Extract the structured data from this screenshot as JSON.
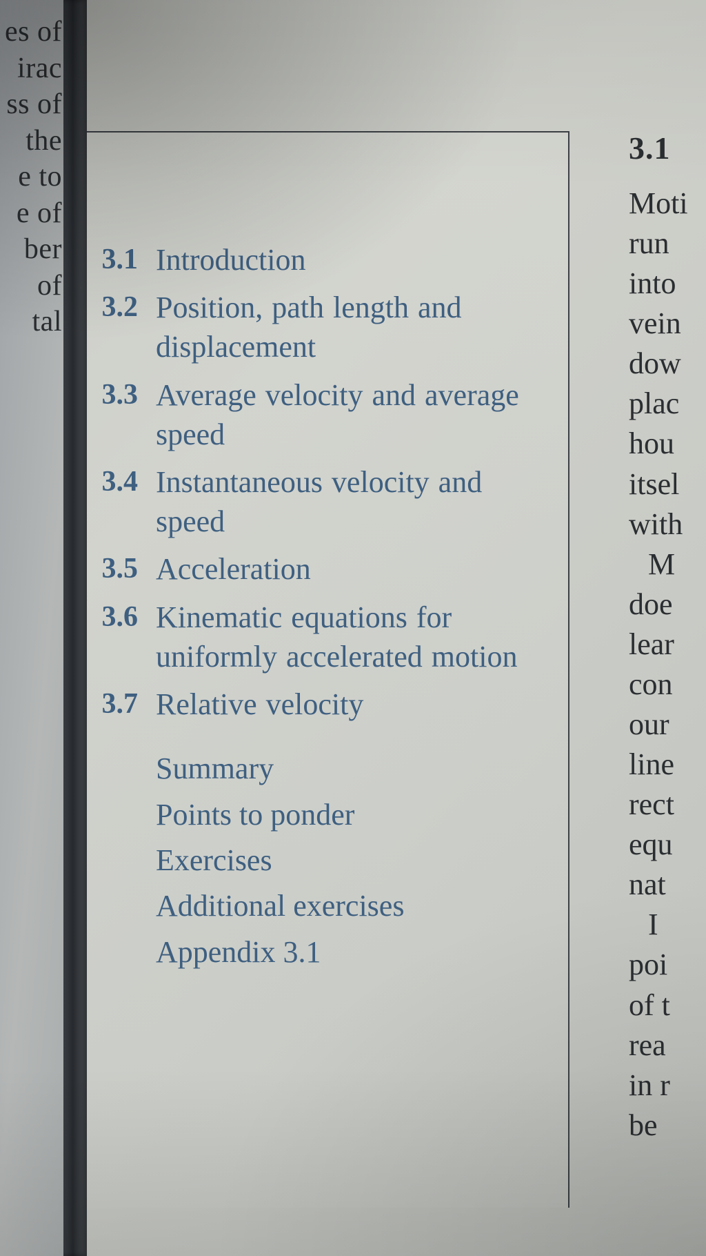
{
  "colors": {
    "toc_text": "#3e5f80",
    "body_text": "#2b2e31",
    "box_border": "#3c4044",
    "page_bg_from": "#c4c6c1",
    "page_bg_to": "#bfc2bd",
    "gutter_dark": "#26292d"
  },
  "typography": {
    "toc_num_fontsize_pt": 32,
    "toc_title_fontsize_pt": 33,
    "right_heading_fontsize_pt": 34,
    "right_para_fontsize_pt": 33,
    "font_family": "Georgia, serif"
  },
  "prev_page_fragments": [
    "es of",
    "irac",
    "ss of",
    "the",
    "e to",
    "e of",
    "ber",
    "of",
    "tal"
  ],
  "toc": {
    "items": [
      {
        "num": "3.1",
        "title": "Introduction"
      },
      {
        "num": "3.2",
        "title": "Position, path length and displacement"
      },
      {
        "num": "3.3",
        "title": "Average velocity and average speed"
      },
      {
        "num": "3.4",
        "title": "Instantaneous velocity and speed"
      },
      {
        "num": "3.5",
        "title": "Acceleration"
      },
      {
        "num": "3.6",
        "title": "Kinematic equations for uniformly accelerated motion"
      },
      {
        "num": "3.7",
        "title": "Relative velocity"
      }
    ],
    "extras": [
      "Summary",
      "Points to ponder",
      "Exercises",
      "Additional exercises",
      "Appendix 3.1"
    ]
  },
  "right_column": {
    "heading": "3.1",
    "lines": [
      "Moti",
      "run",
      "into",
      "vein",
      "dow",
      "plac",
      "hou",
      "itsel",
      "with",
      "M",
      "doe",
      "lear",
      "con",
      "our",
      "line",
      "rect",
      "equ",
      "nat",
      "I",
      "poi",
      "of t",
      "rea",
      "in r",
      "be"
    ],
    "paragraph_break_after_index": 8,
    "second_paragraph_break_after_index": 17,
    "indent_line_indices": [
      9,
      18
    ]
  }
}
